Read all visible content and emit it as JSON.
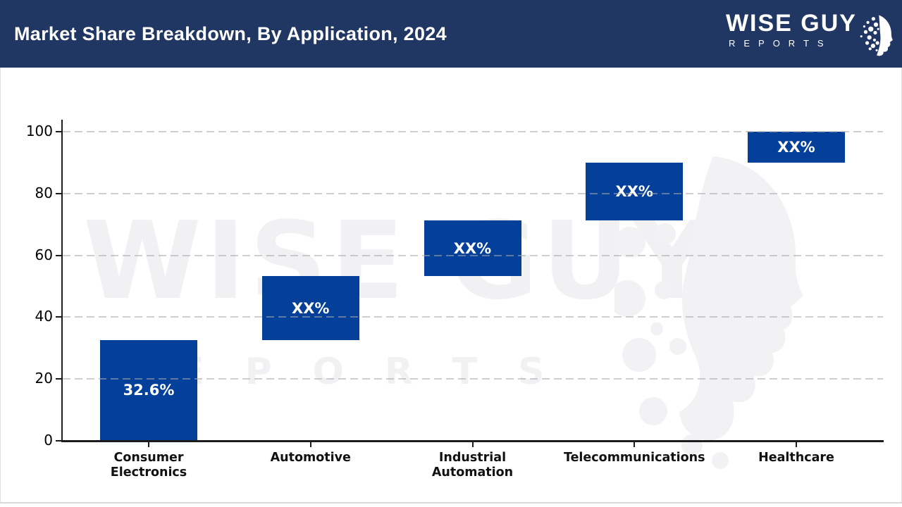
{
  "header": {
    "title": "Market Share Breakdown, By Application, 2024",
    "brand": {
      "line1": "WISE GUY",
      "line2": "REPORTS"
    }
  },
  "watermark": {
    "line1": "WISE GUY",
    "line2": "REPORTS"
  },
  "colors": {
    "header_bg": "#203663",
    "bar": "#04409a",
    "grid": "#d7d7d7",
    "axis": "#1c1c1c",
    "watermark": "#f1f1f4"
  },
  "chart_data": {
    "type": "bar",
    "subtype": "waterfall",
    "title": "Market Share Breakdown, By Application, 2024",
    "categories": [
      "Consumer Electronics",
      "Automotive",
      "Industrial Automation",
      "Telecommunications",
      "Healthcare"
    ],
    "category_lines": [
      [
        "Consumer",
        "Electronics"
      ],
      [
        "Automotive"
      ],
      [
        "Industrial",
        "Automation"
      ],
      [
        "Telecommunications"
      ],
      [
        "Healthcare"
      ]
    ],
    "segments": [
      {
        "category": "Consumer Electronics",
        "start": 0,
        "end": 32.6,
        "label": "32.6%"
      },
      {
        "category": "Automotive",
        "start": 32.6,
        "end": 53.2,
        "label": "XX%"
      },
      {
        "category": "Industrial Automation",
        "start": 53.2,
        "end": 71.2,
        "label": "XX%"
      },
      {
        "category": "Telecommunications",
        "start": 71.2,
        "end": 89.9,
        "label": "XX%"
      },
      {
        "category": "Healthcare",
        "start": 89.9,
        "end": 100,
        "label": "XX%"
      }
    ],
    "ylim": [
      0,
      100
    ],
    "yticks": [
      0,
      20,
      40,
      60,
      80,
      100
    ],
    "xlabel": "",
    "ylabel": "",
    "grid": {
      "horizontal": true,
      "style": "dashed",
      "drawn_over_bars": true
    },
    "legend": null
  }
}
